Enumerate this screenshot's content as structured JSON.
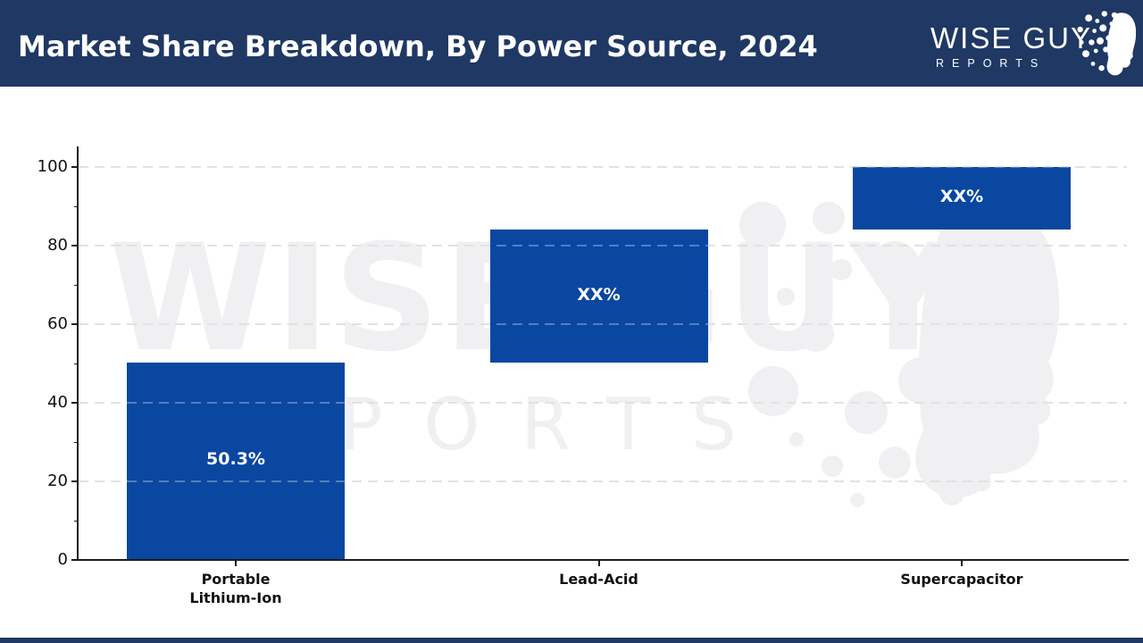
{
  "header": {
    "title": "Market Share Breakdown, By Power Source, 2024",
    "logo": {
      "line1": "WISE GUY",
      "line2": "REPORTS"
    }
  },
  "watermark": {
    "line1": "WISE GUY",
    "line2": "REPORTS"
  },
  "colors": {
    "header_bg": "#1f3864",
    "footer_bg": "#1f3864",
    "bar": "#0a47a1",
    "grid": "#d6d6d6",
    "axis": "#1c1c1c",
    "watermark": "#f0f0f2",
    "bar_label_text": "#ffffff"
  },
  "chart_data": {
    "type": "bar",
    "subtype": "waterfall-floating-segments",
    "title": "Market Share Breakdown, By Power Source, 2024",
    "categories": [
      "Portable Lithium-Ion",
      "Lead-Acid",
      "Supercapacitor"
    ],
    "segments": [
      {
        "category": "Portable Lithium-Ion",
        "base": 0,
        "top": 50.3,
        "label": "50.3%"
      },
      {
        "category": "Lead-Acid",
        "base": 50.3,
        "top": 84,
        "label": "XX%"
      },
      {
        "category": "Supercapacitor",
        "base": 84,
        "top": 100,
        "label": "XX%"
      }
    ],
    "yticks": [
      0,
      20,
      40,
      60,
      80,
      100
    ],
    "ylim": [
      0,
      105
    ],
    "xlabel": "",
    "ylabel": "",
    "grid": "dashed horizontal, drawn over bars",
    "legend": null
  }
}
